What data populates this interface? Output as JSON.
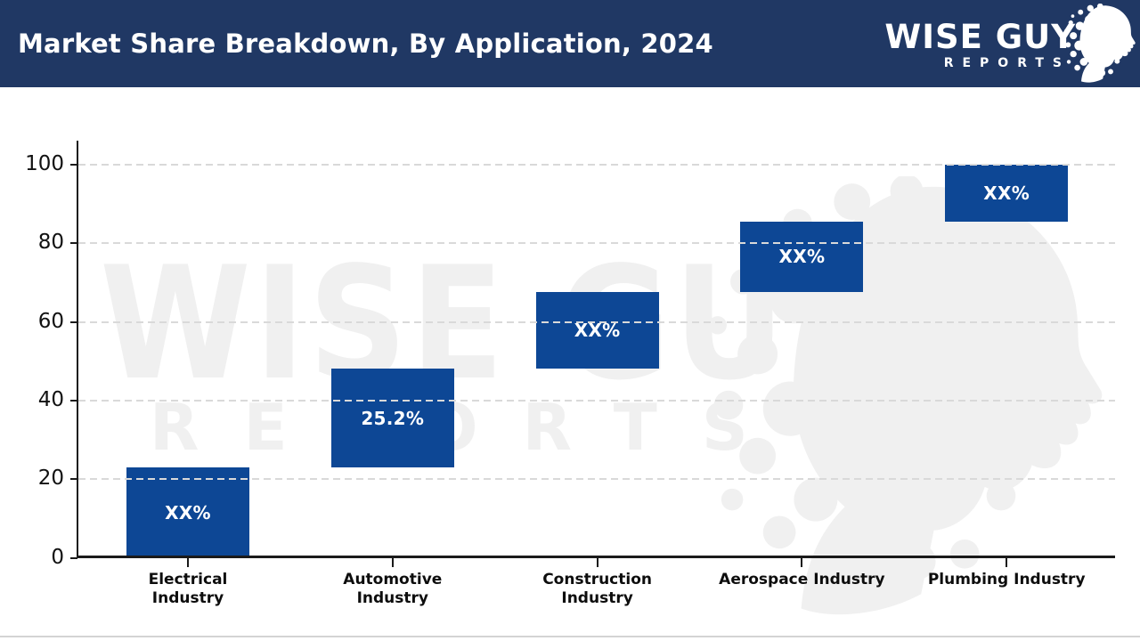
{
  "header": {
    "title": "Market Share Breakdown, By Application, 2024",
    "background_color": "#203864",
    "logo": {
      "line1": "WISE GUY",
      "line2": "REPORTS"
    }
  },
  "watermark": {
    "line1": "WISE GUY",
    "line2": "REPORTS"
  },
  "chart_data": {
    "type": "bar",
    "subtype": "waterfall",
    "title": "Market Share Breakdown, By Application, 2024",
    "categories": [
      "Electrical Industry",
      "Automotive Industry",
      "Construction Industry",
      "Aerospace Industry",
      "Plumbing Industry"
    ],
    "category_label_lines": [
      [
        "Electrical",
        "Industry"
      ],
      [
        "Automotive",
        "Industry"
      ],
      [
        "Construction",
        "Industry"
      ],
      [
        "Aerospace Industry"
      ],
      [
        "Plumbing Industry"
      ]
    ],
    "segments": [
      {
        "category": "Electrical Industry",
        "start": 0,
        "end": 22.9,
        "label": "XX%"
      },
      {
        "category": "Automotive Industry",
        "start": 22.9,
        "end": 48.1,
        "label": "25.2%",
        "value": 25.2
      },
      {
        "category": "Construction Industry",
        "start": 48.1,
        "end": 67.7,
        "label": "XX%"
      },
      {
        "category": "Aerospace Industry",
        "start": 67.7,
        "end": 85.5,
        "label": "XX%"
      },
      {
        "category": "Plumbing Industry",
        "start": 85.5,
        "end": 100.0,
        "label": "XX%"
      }
    ],
    "xlabel": "",
    "ylabel": "",
    "yticks": [
      0,
      20,
      40,
      60,
      80,
      100
    ],
    "ylim": [
      0,
      104
    ],
    "grid": "horizontal-dashed",
    "legend": "none",
    "bar_color": "#0d4795",
    "bar_label_color": "#ffffff",
    "gridline_color": "#d9d9d9",
    "axis_color": "#1a1a1a"
  }
}
